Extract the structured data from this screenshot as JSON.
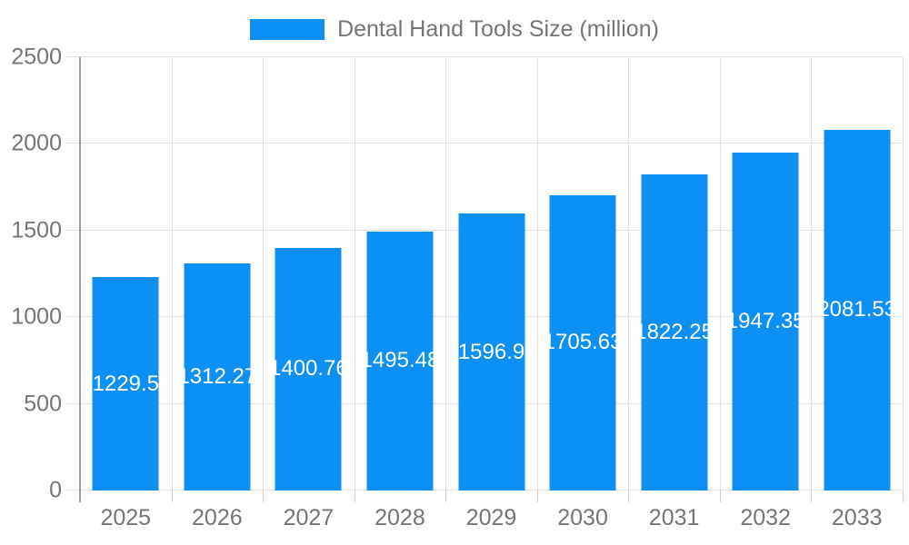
{
  "legend": {
    "label": "Dental Hand Tools Size (million)"
  },
  "chart_data": {
    "type": "bar",
    "title": "Dental Hand Tools Size (million)",
    "categories": [
      "2025",
      "2026",
      "2027",
      "2028",
      "2029",
      "2030",
      "2031",
      "2032",
      "2033"
    ],
    "values": [
      1229.5,
      1312.27,
      1400.76,
      1495.48,
      1596.9,
      1705.63,
      1822.25,
      1947.35,
      2081.53
    ],
    "bar_labels": [
      "1229.5",
      "1312.27",
      "1400.76",
      "1495.48",
      "1596.9",
      "1705.63",
      "1822.25",
      "1947.35",
      "2081.53"
    ],
    "xlabel": "",
    "ylabel": "",
    "ylim": [
      0,
      2500
    ],
    "y_ticks": [
      0,
      500,
      1000,
      1500,
      2000,
      2500
    ],
    "grid": true,
    "legend_position": "top-center",
    "colors": {
      "bar": "#0C90F6",
      "bar_label": "#FFFFFF",
      "tick_text": "#757575",
      "grid_line": "#E3E3E3",
      "axis_line": "#9E9E9E",
      "tick_mark": "#CCCCCC",
      "background": "#FFFFFF"
    }
  }
}
